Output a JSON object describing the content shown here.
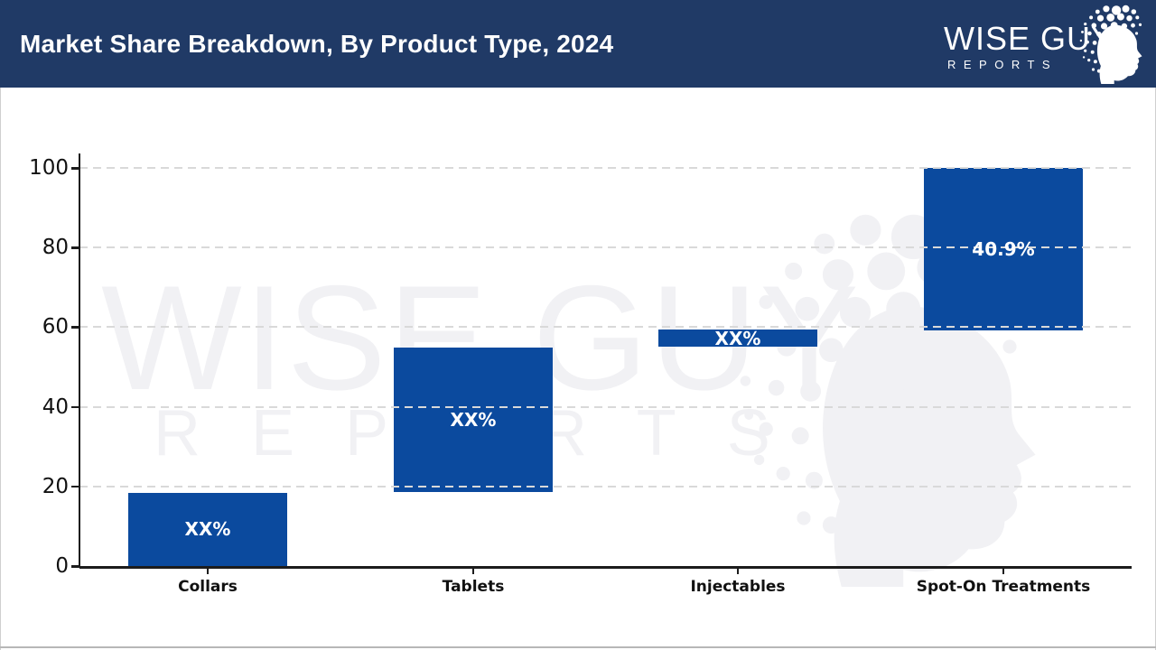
{
  "header": {
    "title": "Market Share Breakdown, By Product Type, 2024",
    "brand": {
      "name_top": "WISE GUY",
      "name_bottom": "REPORTS"
    }
  },
  "watermark": {
    "line1": "WISE GUY",
    "line2": "REPORTS"
  },
  "colors": {
    "header_bg": "#203a66",
    "bar": "#0b4a9e",
    "bar_label": "#ffffff",
    "grid": "#d9d9d9",
    "axis": "#1c1c1c",
    "watermark": "#f1f1f4"
  },
  "chart_data": {
    "type": "bar",
    "variant": "floating-waterfall",
    "title": "Market Share Breakdown, By Product Type, 2024",
    "categories": [
      "Collars",
      "Tablets",
      "Injectables",
      "Spot-On Treatments"
    ],
    "bars": [
      {
        "category": "Collars",
        "start": 0,
        "end": 18.4,
        "label": "XX%"
      },
      {
        "category": "Tablets",
        "start": 18.6,
        "end": 54.9,
        "label": "XX%"
      },
      {
        "category": "Injectables",
        "start": 55.0,
        "end": 59.5,
        "label": "XX%"
      },
      {
        "category": "Spot-On Treatments",
        "start": 59.1,
        "end": 100.0,
        "label": "40.9%"
      }
    ],
    "y_ticks": [
      0,
      20,
      40,
      60,
      80,
      100
    ],
    "ylim": [
      0,
      103.5
    ],
    "xlabel": "",
    "ylabel": "",
    "grid": "dashed-horizontal-over-bars",
    "legend": "none"
  }
}
